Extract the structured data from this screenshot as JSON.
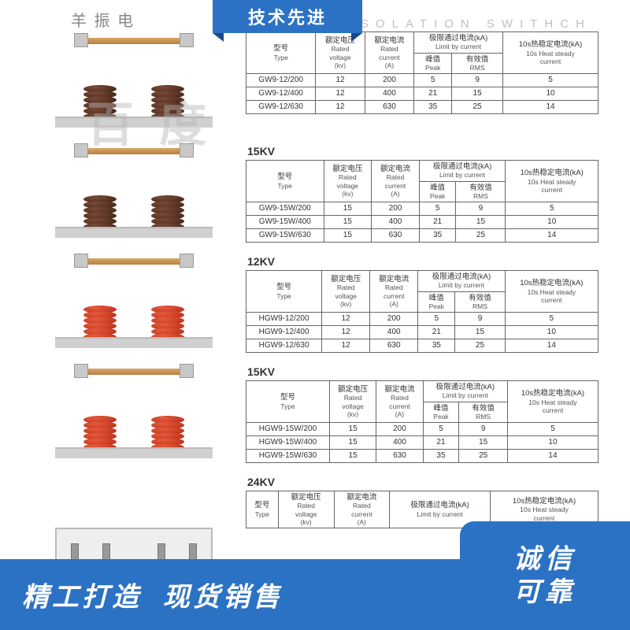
{
  "header": {
    "brand_partial": "羊 振 电",
    "english_partial": "SOLATION SWITHCH"
  },
  "watermark": "百度",
  "badges": {
    "top": "技术先进",
    "footer_left": "精工打造",
    "footer_right_l1": "诚信",
    "footer_right_l2": "可靠",
    "footer_banner": "现货销售"
  },
  "columns": {
    "type_cn": "型号",
    "type_en": "Type",
    "voltage_cn": "额定电压",
    "voltage_en1": "Rated",
    "voltage_en2": "voltage",
    "voltage_unit": "(kv)",
    "current_cn": "额定电流",
    "current_en1": "Rated",
    "current_en2": "current",
    "current_unit": "(A)",
    "limit_cn": "极限通过电流(kA)",
    "limit_en": "Limit by current",
    "peak_cn": "峰值",
    "peak_en": "Peak",
    "rms_cn": "有效值",
    "rms_en": "RMS",
    "heat_cn": "10s热稳定电流(kA)",
    "heat_en1": "10s Heat steady",
    "heat_en2": "current"
  },
  "sections": [
    {
      "title": "",
      "insulator_color": "brown",
      "rows": [
        {
          "type": "GW9-12/200",
          "v": "12",
          "a": "200",
          "peak": "5",
          "rms": "9",
          "heat": "5"
        },
        {
          "type": "GW9-12/400",
          "v": "12",
          "a": "400",
          "peak": "21",
          "rms": "15",
          "heat": "10"
        },
        {
          "type": "GW9-12/630",
          "v": "12",
          "a": "630",
          "peak": "35",
          "rms": "25",
          "heat": "14"
        }
      ]
    },
    {
      "title": "15KV",
      "insulator_color": "brown",
      "rows": [
        {
          "type": "GW9-15W/200",
          "v": "15",
          "a": "200",
          "peak": "5",
          "rms": "9",
          "heat": "5"
        },
        {
          "type": "GW9-15W/400",
          "v": "15",
          "a": "400",
          "peak": "21",
          "rms": "15",
          "heat": "10"
        },
        {
          "type": "GW9-15W/630",
          "v": "15",
          "a": "630",
          "peak": "35",
          "rms": "25",
          "heat": "14"
        }
      ]
    },
    {
      "title": "12KV",
      "insulator_color": "red",
      "rows": [
        {
          "type": "HGW9-12/200",
          "v": "12",
          "a": "200",
          "peak": "5",
          "rms": "9",
          "heat": "5"
        },
        {
          "type": "HGW9-12/400",
          "v": "12",
          "a": "400",
          "peak": "21",
          "rms": "15",
          "heat": "10"
        },
        {
          "type": "HGW9-12/630",
          "v": "12",
          "a": "630",
          "peak": "35",
          "rms": "25",
          "heat": "14"
        }
      ]
    },
    {
      "title": "15KV",
      "insulator_color": "red",
      "rows": [
        {
          "type": "HGW9-15W/200",
          "v": "15",
          "a": "200",
          "peak": "5",
          "rms": "9",
          "heat": "5"
        },
        {
          "type": "HGW9-15W/400",
          "v": "15",
          "a": "400",
          "peak": "21",
          "rms": "15",
          "heat": "10"
        },
        {
          "type": "HGW9-15W/630",
          "v": "15",
          "a": "630",
          "peak": "35",
          "rms": "25",
          "heat": "14"
        }
      ]
    },
    {
      "title": "24KV",
      "insulator_color": "none",
      "rows": []
    }
  ],
  "colors": {
    "brand_blue": "#2c72c4",
    "insulator_brown": "#4a2a1a",
    "insulator_red": "#c83020",
    "table_border": "#666666",
    "watermark_gray": "rgba(180,180,180,0.45)"
  }
}
